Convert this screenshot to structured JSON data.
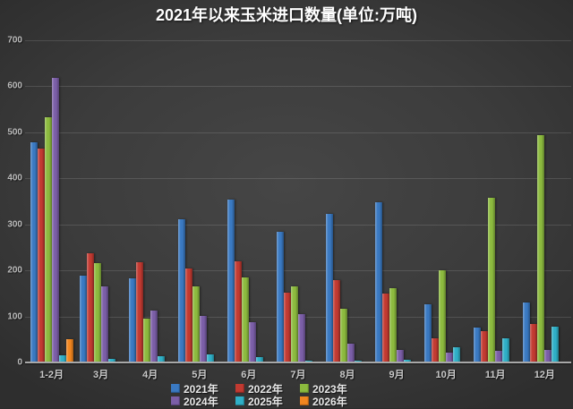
{
  "chart_data": {
    "type": "bar",
    "title": "2021年以来玉米进口数量(单位:万吨)",
    "xlabel": "",
    "ylabel": "",
    "ylim": [
      0,
      700
    ],
    "ytick_interval": 100,
    "yticks": [
      0,
      100,
      200,
      300,
      400,
      500,
      600,
      700
    ],
    "grid": true,
    "legend_position": "bottom",
    "categories": [
      "1-2月",
      "3月",
      "4月",
      "5月",
      "6月",
      "7月",
      "8月",
      "9月",
      "10月",
      "11月",
      "12月"
    ],
    "series": [
      {
        "name": "2021年",
        "color": "#3a79c2",
        "values": [
          478,
          189,
          183,
          311,
          354,
          283,
          322,
          349,
          127,
          75,
          131
        ]
      },
      {
        "name": "2022年",
        "color": "#c23a31",
        "values": [
          465,
          238,
          218,
          205,
          219,
          151,
          178,
          150,
          52,
          69,
          83
        ]
      },
      {
        "name": "2023年",
        "color": "#8cba3e",
        "values": [
          533,
          216,
          95,
          165,
          184,
          166,
          116,
          162,
          201,
          357,
          493
        ]
      },
      {
        "name": "2024年",
        "color": "#7b5ea7",
        "values": [
          618,
          166,
          113,
          101,
          88,
          106,
          40,
          27,
          21,
          26,
          27
        ]
      },
      {
        "name": "2025年",
        "color": "#2fafc7",
        "values": [
          15,
          8,
          14,
          17,
          12,
          4,
          3,
          5,
          33,
          52,
          77
        ]
      },
      {
        "name": "2026年",
        "color": "#f2861f",
        "values": [
          51,
          0,
          0,
          0,
          0,
          0,
          0,
          0,
          0,
          0,
          0
        ]
      }
    ]
  }
}
